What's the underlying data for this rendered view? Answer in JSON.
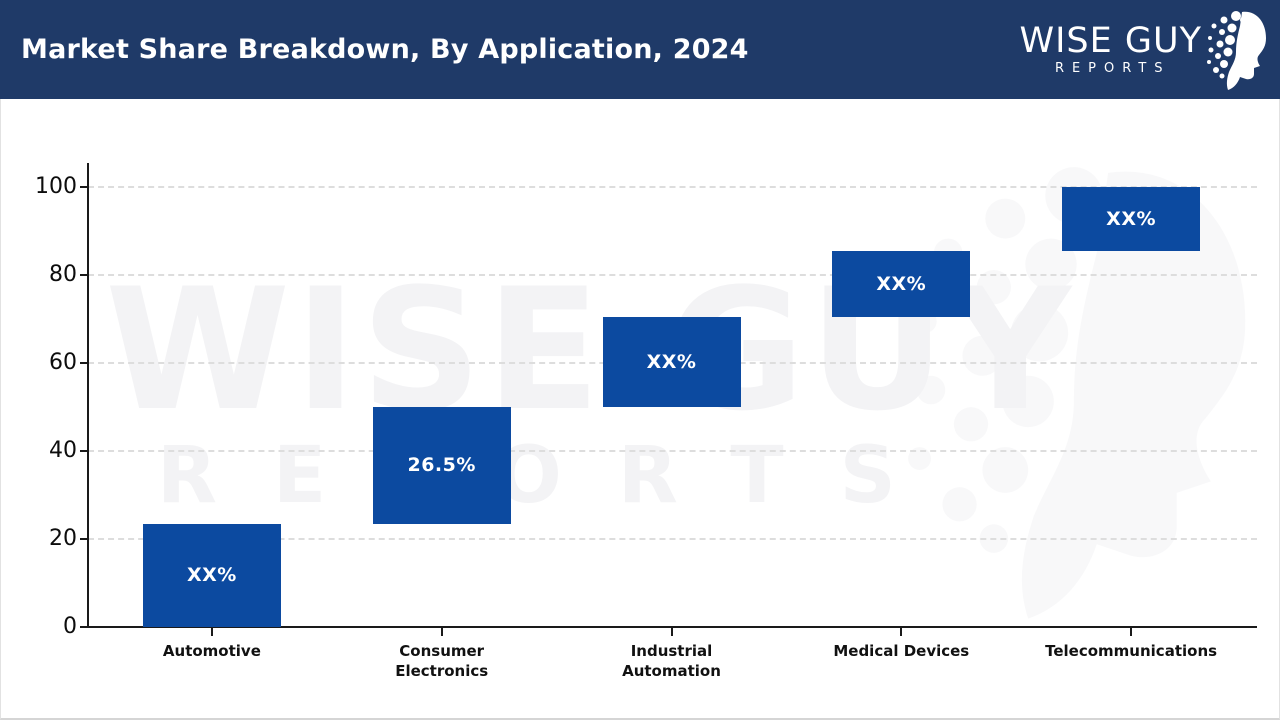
{
  "header": {
    "title": "Market Share Breakdown, By Application, 2024",
    "logo": {
      "line1": "WISE GUY",
      "line2": "REPORTS"
    }
  },
  "watermark": {
    "line1": "WISE GUY",
    "line2": "REPORTS"
  },
  "colors": {
    "header_bg": "#1f3a68",
    "bar": "#0c4aa0",
    "grid": "#dddddd",
    "axis": "#1a1a1a",
    "bar_label": "#ffffff",
    "watermark": "#f3f3f5"
  },
  "chart_data": {
    "type": "bar",
    "subtype": "floating-waterfall",
    "title": "Market Share Breakdown, By Application, 2024",
    "xlabel": "",
    "ylabel": "",
    "ylim": [
      0,
      100
    ],
    "yticks": [
      0,
      20,
      40,
      60,
      80,
      100
    ],
    "grid": "horizontal-dashed",
    "legend": "none",
    "bar_color": "#0c4aa0",
    "categories": [
      "Automotive",
      "Consumer Electronics",
      "Industrial Automation",
      "Medical Devices",
      "Telecommunications"
    ],
    "segments": [
      {
        "category": "Automotive",
        "lines": [
          "Automotive"
        ],
        "start": 0,
        "end": 23.5,
        "value": 23.5,
        "label": "XX%"
      },
      {
        "category": "Consumer Electronics",
        "lines": [
          "Consumer",
          "Electronics"
        ],
        "start": 23.5,
        "end": 50,
        "value": 26.5,
        "label": "26.5%"
      },
      {
        "category": "Industrial Automation",
        "lines": [
          "Industrial",
          "Automation"
        ],
        "start": 50,
        "end": 70.5,
        "value": 20.5,
        "label": "XX%"
      },
      {
        "category": "Medical Devices",
        "lines": [
          "Medical Devices"
        ],
        "start": 70.5,
        "end": 85.5,
        "value": 15,
        "label": "XX%"
      },
      {
        "category": "Telecommunications",
        "lines": [
          "Telecommunications"
        ],
        "start": 85.5,
        "end": 100,
        "value": 14.5,
        "label": "XX%"
      }
    ]
  }
}
